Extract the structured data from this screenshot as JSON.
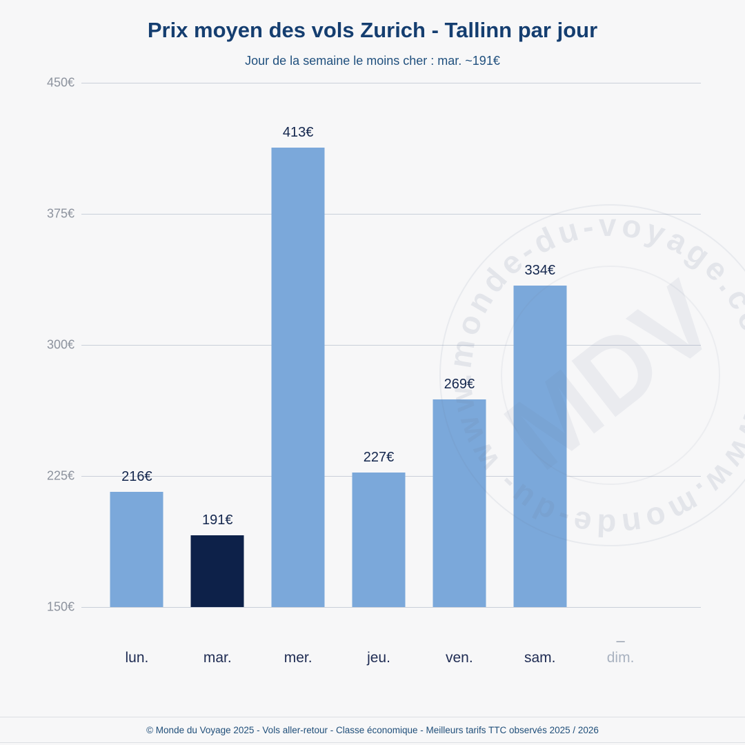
{
  "title": "Prix moyen des vols Zurich - Tallinn par jour",
  "subtitle": "Jour de la semaine le moins cher : mar. ~191€",
  "footer": "© Monde du Voyage 2025 - Vols aller-retour - Classe économique - Meilleurs tarifs TTC observés 2025 / 2026",
  "watermark": {
    "ring_text": "www.monde-du-voyage.com · www.monde-du-voyage.com ·",
    "center_text": "MDV"
  },
  "chart_data": {
    "type": "bar",
    "title": "Prix moyen des vols Zurich - Tallinn par jour",
    "xlabel": "",
    "ylabel": "",
    "categories": [
      "lun.",
      "mar.",
      "mer.",
      "jeu.",
      "ven.",
      "sam.",
      "dim."
    ],
    "values": [
      216,
      191,
      413,
      227,
      269,
      334,
      null
    ],
    "value_labels": [
      "216€",
      "191€",
      "413€",
      "227€",
      "269€",
      "334€",
      null
    ],
    "no_data_marker": "–",
    "ylim": [
      150,
      450
    ],
    "yticks": [
      450,
      375,
      300,
      225,
      150
    ],
    "ytick_labels": [
      "450€",
      "375€",
      "300€",
      "225€",
      "150€"
    ],
    "grid": true,
    "legend": false,
    "bar_color": "#7ba8da",
    "highlight_color": "#0d2149",
    "highlight_index": 1,
    "highlight_reason": "cheapest day"
  }
}
